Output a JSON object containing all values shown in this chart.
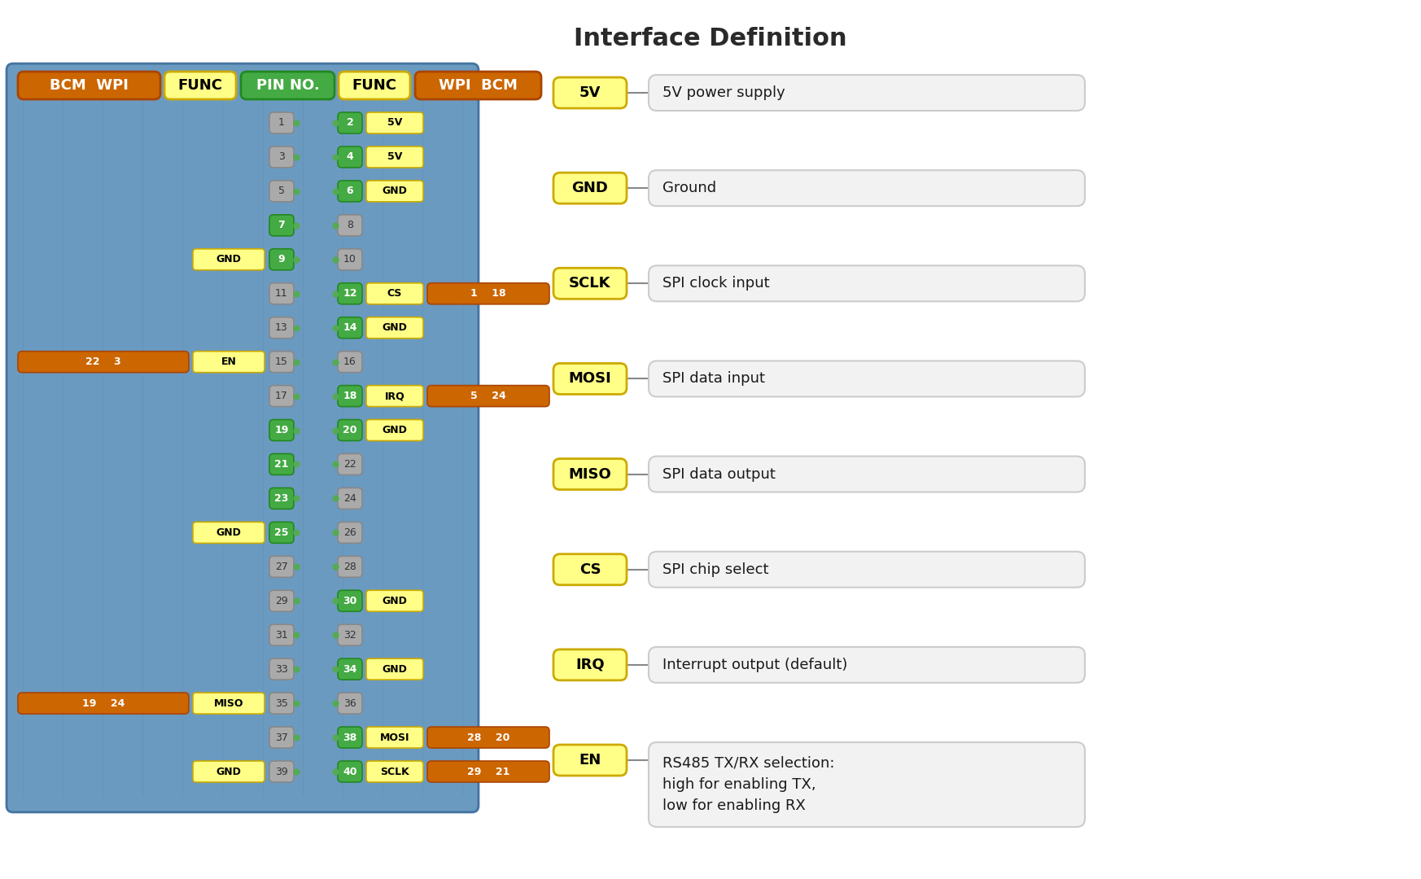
{
  "title": "Interface Definition",
  "bg": "#ffffff",
  "board_color": "#5B8FBA",
  "board_edge": "#3A6A9A",
  "orange": "#CC6600",
  "orange_edge": "#AA4400",
  "yellow": "#FFFF88",
  "yellow_edge": "#CCAA00",
  "green_pin": "#44AA44",
  "green_pin_edge": "#228822",
  "gray_pin": "#AAAAAA",
  "gray_pin_edge": "#888888",
  "right_panel": [
    {
      "label": "5V",
      "desc": "5V power supply",
      "multiline": false
    },
    {
      "label": "GND",
      "desc": "Ground",
      "multiline": false
    },
    {
      "label": "SCLK",
      "desc": "SPI clock input",
      "multiline": false
    },
    {
      "label": "MOSI",
      "desc": "SPI data input",
      "multiline": false
    },
    {
      "label": "MISO",
      "desc": "SPI data output",
      "multiline": false
    },
    {
      "label": "CS",
      "desc": "SPI chip select",
      "multiline": false
    },
    {
      "label": "IRQ",
      "desc": "Interrupt output (default)",
      "multiline": false
    },
    {
      "label": "EN",
      "desc": "RS485 TX/RX selection:\nhigh for enabling TX,\nlow for enabling RX",
      "multiline": true
    }
  ],
  "rows": [
    {
      "lp": 1,
      "lf": null,
      "lb": null,
      "lw": null,
      "rp": 2,
      "rf": "5V",
      "rw": null,
      "rb": null
    },
    {
      "lp": 3,
      "lf": null,
      "lb": null,
      "lw": null,
      "rp": 4,
      "rf": "5V",
      "rw": null,
      "rb": null
    },
    {
      "lp": 5,
      "lf": null,
      "lb": null,
      "lw": null,
      "rp": 6,
      "rf": "GND",
      "rw": null,
      "rb": null
    },
    {
      "lp": 7,
      "lf": null,
      "lb": null,
      "lw": null,
      "rp": 8,
      "rf": null,
      "rw": null,
      "rb": null
    },
    {
      "lp": 9,
      "lf": "GND",
      "lb": null,
      "lw": null,
      "rp": 10,
      "rf": null,
      "rw": null,
      "rb": null
    },
    {
      "lp": 11,
      "lf": null,
      "lb": null,
      "lw": null,
      "rp": 12,
      "rf": "CS",
      "rw": 1,
      "rb": 18
    },
    {
      "lp": 13,
      "lf": null,
      "lb": null,
      "lw": null,
      "rp": 14,
      "rf": "GND",
      "rw": null,
      "rb": null
    },
    {
      "lp": 15,
      "lf": "EN",
      "lb": 22,
      "lw": 3,
      "rp": 16,
      "rf": null,
      "rw": null,
      "rb": null
    },
    {
      "lp": 17,
      "lf": null,
      "lb": null,
      "lw": null,
      "rp": 18,
      "rf": "IRQ",
      "rw": 5,
      "rb": 24
    },
    {
      "lp": 19,
      "lf": null,
      "lb": null,
      "lw": null,
      "rp": 20,
      "rf": "GND",
      "rw": null,
      "rb": null
    },
    {
      "lp": 21,
      "lf": null,
      "lb": null,
      "lw": null,
      "rp": 22,
      "rf": null,
      "rw": null,
      "rb": null
    },
    {
      "lp": 23,
      "lf": null,
      "lb": null,
      "lw": null,
      "rp": 24,
      "rf": null,
      "rw": null,
      "rb": null
    },
    {
      "lp": 25,
      "lf": "GND",
      "lb": null,
      "lw": null,
      "rp": 26,
      "rf": null,
      "rw": null,
      "rb": null
    },
    {
      "lp": 27,
      "lf": null,
      "lb": null,
      "lw": null,
      "rp": 28,
      "rf": null,
      "rw": null,
      "rb": null
    },
    {
      "lp": 29,
      "lf": null,
      "lb": null,
      "lw": null,
      "rp": 30,
      "rf": "GND",
      "rw": null,
      "rb": null
    },
    {
      "lp": 31,
      "lf": null,
      "lb": null,
      "lw": null,
      "rp": 32,
      "rf": null,
      "rw": null,
      "rb": null
    },
    {
      "lp": 33,
      "lf": null,
      "lb": null,
      "lw": null,
      "rp": 34,
      "rf": "GND",
      "rw": null,
      "rb": null
    },
    {
      "lp": 35,
      "lf": "MISO",
      "lb": 19,
      "lw": 24,
      "rp": 36,
      "rf": null,
      "rw": null,
      "rb": null
    },
    {
      "lp": 37,
      "lf": null,
      "lb": null,
      "lw": null,
      "rp": 38,
      "rf": "MOSI",
      "rw": 28,
      "rb": 20
    },
    {
      "lp": 39,
      "lf": "GND",
      "lb": null,
      "lw": null,
      "rp": 40,
      "rf": "SCLK",
      "rw": 29,
      "rb": 21
    }
  ],
  "green_left_pins": [
    7,
    9,
    19,
    21,
    23,
    25
  ],
  "green_right_pins": [
    2,
    4,
    6,
    12,
    14,
    18,
    20,
    30,
    34,
    38,
    40
  ]
}
